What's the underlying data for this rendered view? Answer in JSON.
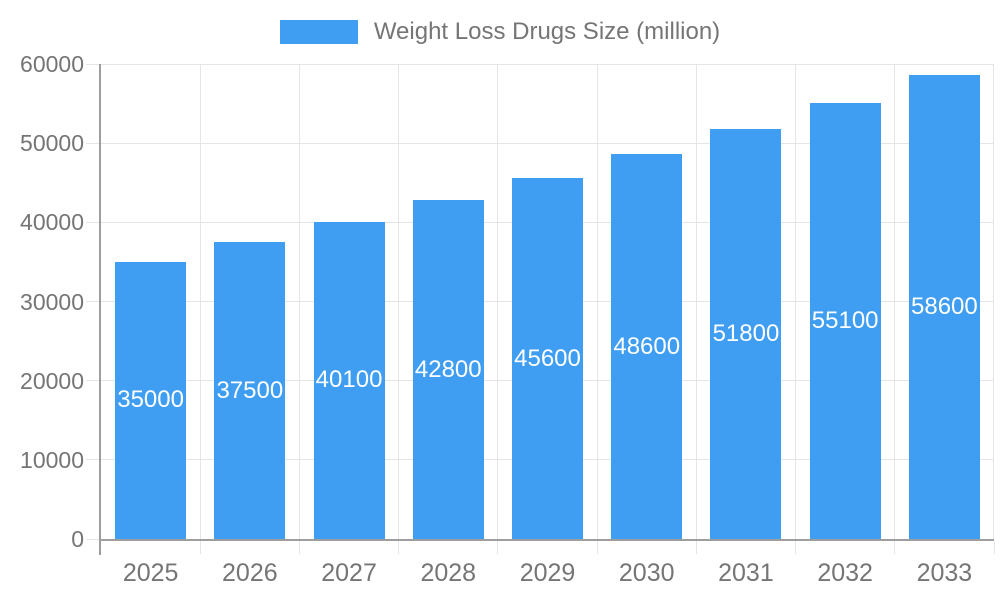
{
  "legend": {
    "label": "Weight Loss Drugs Size (million)"
  },
  "chart_data": {
    "type": "bar",
    "title": "Weight Loss Drugs Size (million)",
    "series_name": "Weight Loss Drugs Size (million)",
    "categories": [
      "2025",
      "2026",
      "2027",
      "2028",
      "2029",
      "2030",
      "2031",
      "2032",
      "2033"
    ],
    "values": [
      35000,
      37500,
      40100,
      42800,
      45600,
      48600,
      51800,
      55100,
      58600
    ],
    "value_labels": [
      "35000",
      "37500",
      "40100",
      "42800",
      "45600",
      "48600",
      "51800",
      "55100",
      "58600"
    ],
    "xlabel": "",
    "ylabel": "",
    "ylim": [
      0,
      60000
    ],
    "yticks": [
      0,
      10000,
      20000,
      30000,
      40000,
      50000,
      60000
    ],
    "ytick_labels": [
      "0",
      "10000",
      "20000",
      "30000",
      "40000",
      "50000",
      "60000"
    ],
    "grid": true,
    "legend_position": "top-center",
    "value_label_position": "inside-middle",
    "colors": {
      "bar": "#3f9ef2",
      "grid": "#e5e5e5",
      "axis": "#9e9e9e",
      "text": "#757575",
      "value_label": "#ffffff",
      "background": "#ffffff"
    }
  }
}
